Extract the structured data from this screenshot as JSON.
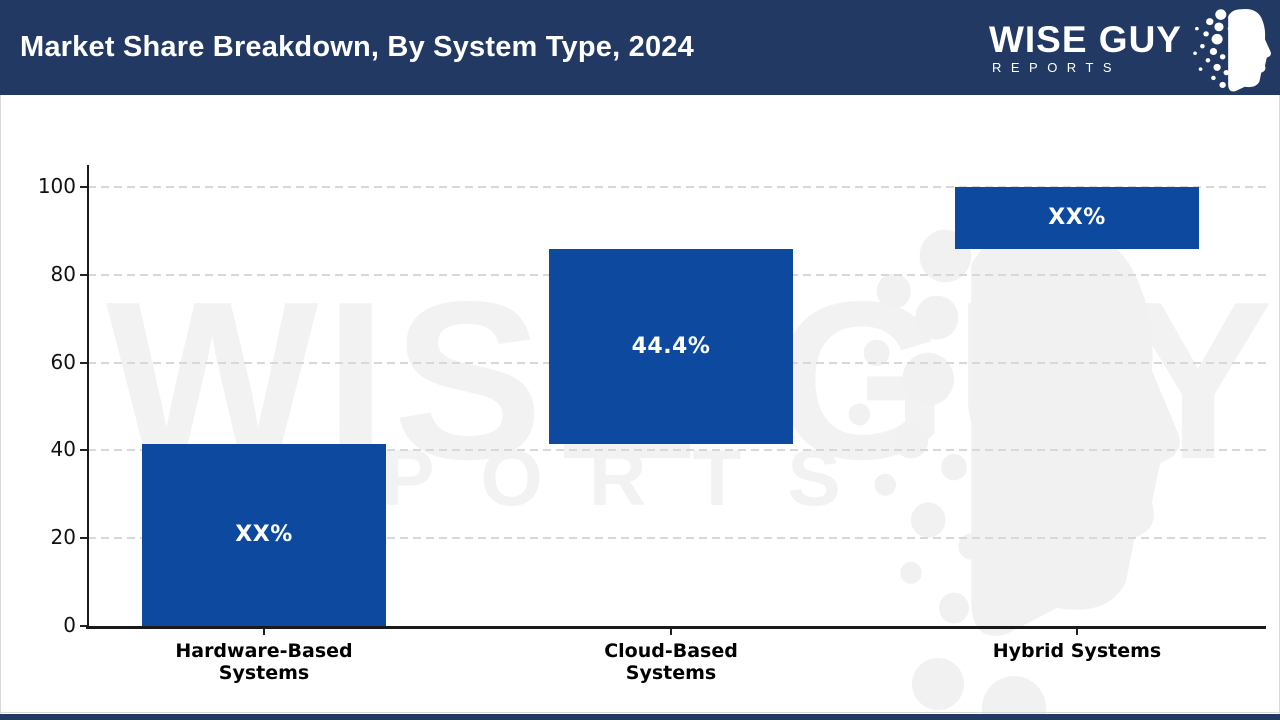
{
  "header": {
    "title": "Market Share Breakdown, By System Type, 2024",
    "logo": {
      "line1": "WISE GUY",
      "line2": "REPORTS"
    }
  },
  "watermark": {
    "line1": "WISE GUY",
    "line2": "REPORTS"
  },
  "chart_data": {
    "type": "bar",
    "subtype": "waterfall-stacked-percent",
    "title": "Market Share Breakdown, By System Type, 2024",
    "categories": [
      "Hardware-Based\nSystems",
      "Cloud-Based\nSystems",
      "Hybrid Systems"
    ],
    "segments": [
      {
        "category": "Hardware-Based Systems",
        "label": "XX%",
        "start": 0,
        "end": 41.5,
        "value_shown": "XX%"
      },
      {
        "category": "Cloud-Based Systems",
        "label": "44.4%",
        "start": 41.5,
        "end": 85.9,
        "value_shown": "44.4%"
      },
      {
        "category": "Hybrid Systems",
        "label": "XX%",
        "start": 85.9,
        "end": 100,
        "value_shown": "XX%"
      }
    ],
    "yticks": [
      0,
      20,
      40,
      60,
      80,
      100
    ],
    "ylim": [
      0,
      105
    ],
    "xlabel": "",
    "ylabel": "",
    "grid": "horizontal-dashed",
    "legend": false
  },
  "colors": {
    "header_bg": "#223963",
    "footer_bg": "#223963",
    "bar": "#0d4a9f",
    "bar_label": "#ffffff",
    "grid": "#d8d8d8",
    "axis": "#1a1a1a",
    "watermark": "#f2f2f2"
  }
}
